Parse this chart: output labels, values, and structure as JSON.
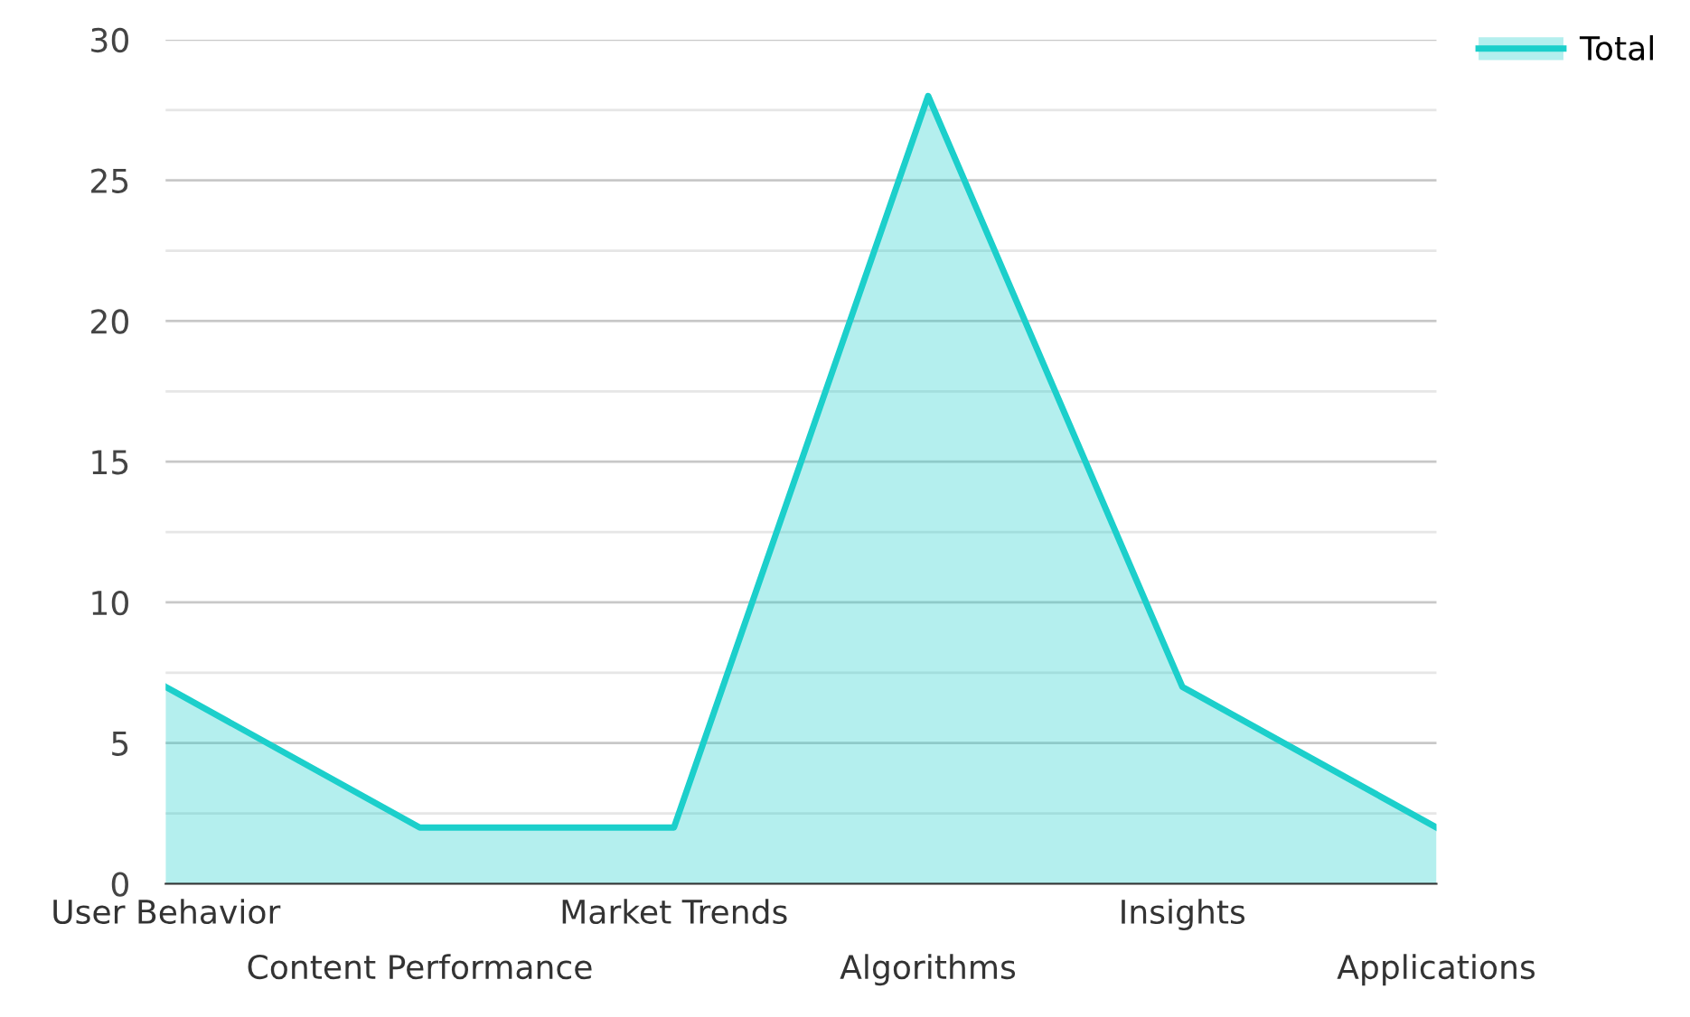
{
  "chart_data": {
    "type": "area",
    "categories": [
      "User Behavior",
      "Content Performance",
      "Market Trends",
      "Algorithms",
      "Insights",
      "Applications"
    ],
    "series": [
      {
        "name": "Total",
        "color": "#1ccfcb",
        "values": [
          7,
          2,
          2,
          28,
          7,
          2
        ]
      }
    ],
    "ylim": [
      0,
      30
    ],
    "yticks": [
      0,
      {
        "value": 2.5,
        "label": null
      },
      5,
      {
        "value": 7.5,
        "label": null
      },
      10,
      {
        "value": 12.5,
        "label": null
      },
      15,
      {
        "value": 17.5,
        "label": null
      },
      20,
      {
        "value": 22.5,
        "label": null
      },
      25,
      {
        "value": 27.5,
        "label": null
      },
      30
    ],
    "grid": "y",
    "legend": "top right"
  }
}
